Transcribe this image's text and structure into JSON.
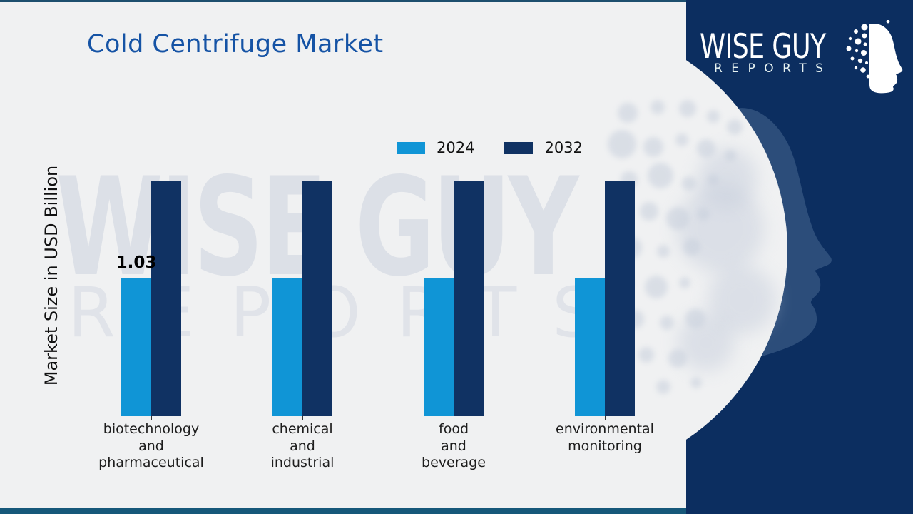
{
  "title": "Cold Centrifuge Market",
  "watermark": {
    "line1": "WISE GUY",
    "line2": "REPORTS"
  },
  "logo": {
    "line1": "WISE GUY",
    "line2": "REPORTS"
  },
  "colors": {
    "background": "#f0f1f2",
    "title": "#1553a5",
    "side_panel": "#0c2e60",
    "bottom_strip": "#16587a",
    "bar_2024": "#1095d6",
    "bar_2032": "#103263"
  },
  "chart_data": {
    "type": "bar",
    "title": "Cold Centrifuge Market",
    "ylabel": "Market Size in USD Billion",
    "xlabel": "",
    "ylim": [
      0,
      1.9
    ],
    "grid": false,
    "legend_position": "top-center",
    "categories": [
      "biotechnology and pharmaceutical",
      "chemical and industrial",
      "food and beverage",
      "environmental monitoring"
    ],
    "series": [
      {
        "name": "2024",
        "color": "#1095d6",
        "values": [
          1.03,
          1.03,
          1.03,
          1.03
        ],
        "data_labels": [
          "1.03",
          "",
          "",
          ""
        ]
      },
      {
        "name": "2032",
        "color": "#103263",
        "values": [
          1.75,
          1.75,
          1.75,
          1.75
        ],
        "data_labels": [
          "",
          "",
          "",
          ""
        ]
      }
    ]
  }
}
